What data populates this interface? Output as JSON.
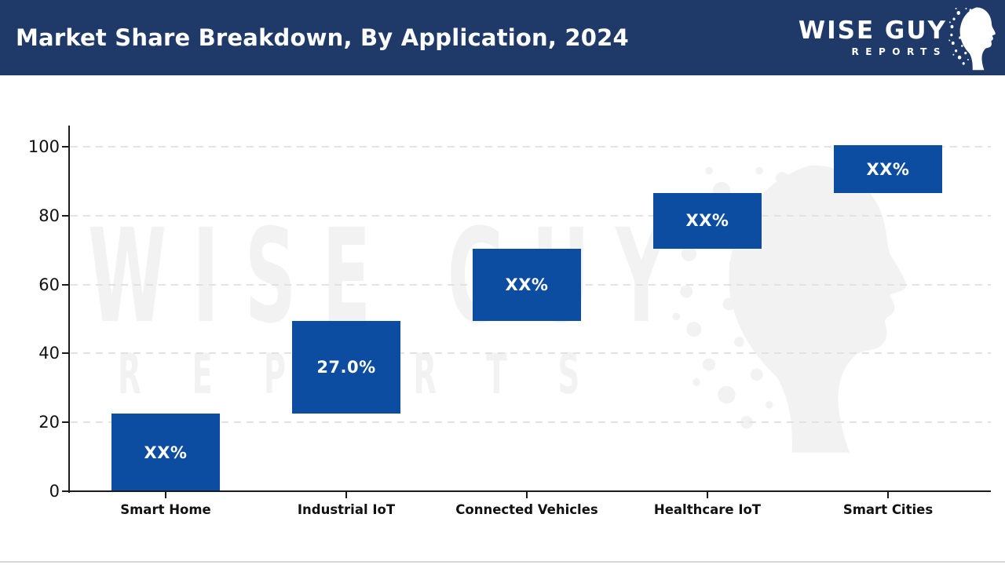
{
  "header": {
    "title": "Market Share Breakdown, By Application, 2024",
    "bg_color": "#1f3a68",
    "text_color": "#ffffff",
    "logo": {
      "line1": "WISE GUY",
      "line2": "REPORTS"
    }
  },
  "watermark": {
    "line1": "WISE GUY",
    "line2": "REPORTS"
  },
  "chart_data": {
    "type": "bar",
    "subtype": "waterfall",
    "title": "Market Share Breakdown, By Application, 2024",
    "xlabel": "",
    "ylabel": "",
    "categories": [
      "Smart Home",
      "Industrial IoT",
      "Connected Vehicles",
      "Healthcare IoT",
      "Smart Cities"
    ],
    "bars": [
      {
        "category": "Smart Home",
        "start": 0,
        "end": 22.5,
        "label": "XX%"
      },
      {
        "category": "Industrial IoT",
        "start": 22.5,
        "end": 49.5,
        "label": "27.0%"
      },
      {
        "category": "Connected Vehicles",
        "start": 49.5,
        "end": 70.4,
        "label": "XX%"
      },
      {
        "category": "Healthcare IoT",
        "start": 70.4,
        "end": 86.6,
        "label": "XX%"
      },
      {
        "category": "Smart Cities",
        "start": 86.6,
        "end": 100.4,
        "label": "XX%"
      }
    ],
    "yticks": [
      0,
      20,
      40,
      60,
      80,
      100
    ],
    "ylim": [
      0,
      106
    ],
    "grid": "horizontal-dashed",
    "legend": null,
    "bar_color": "#0c4da2",
    "bar_label_color": "#ffffff",
    "axis_color": "#1a1a1a",
    "gridline_color": "#e2e2e2"
  }
}
